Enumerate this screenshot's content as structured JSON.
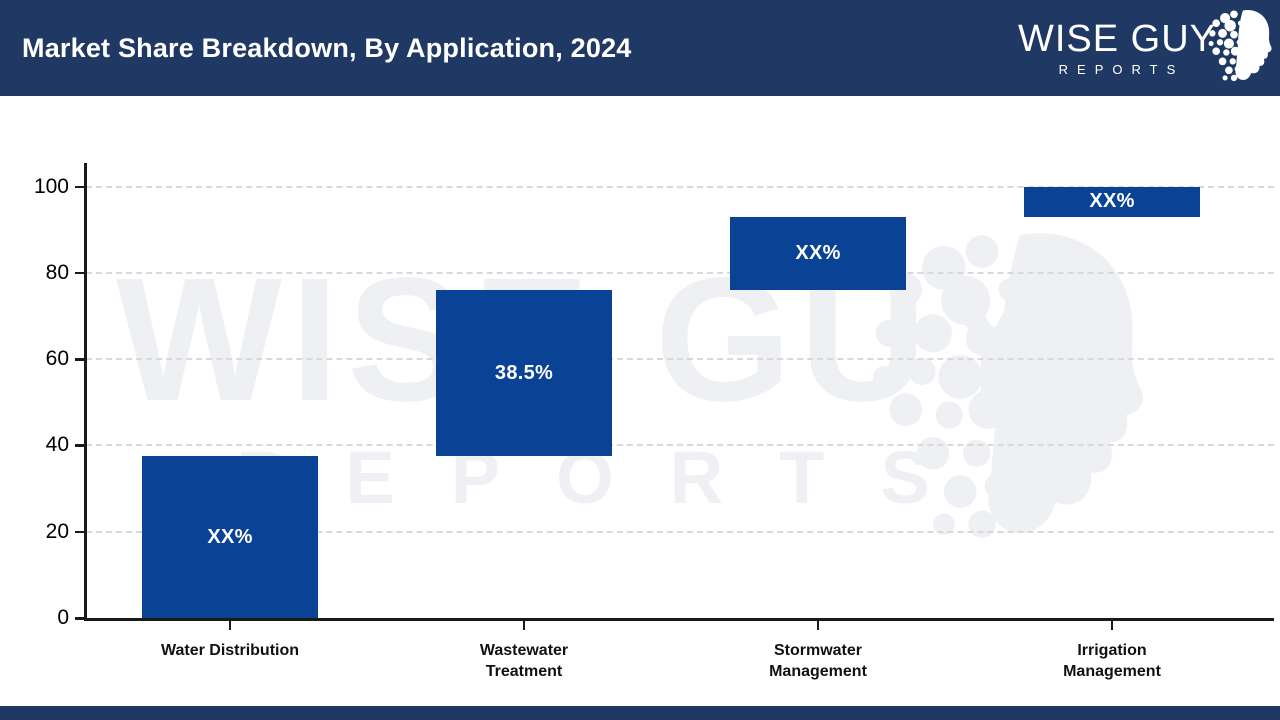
{
  "header": {
    "title": "Market Share Breakdown, By Application, 2024",
    "logo": {
      "line1": "WISE GUY",
      "line2": "REPORTS"
    }
  },
  "watermark": {
    "line1": "WISE GUY",
    "line2": "REPORTS"
  },
  "icons": {
    "logo_head": "head-profile-dots-icon"
  },
  "colors": {
    "header_bg": "#203864",
    "footer_bg": "#203864",
    "bar": "#0a4296",
    "gridline": "#d9d9d9",
    "axis": "#1a1a1a",
    "watermark": "#eef0f3",
    "bar_label_text": "#ffffff",
    "tick_text": "#000000"
  },
  "chart_data": {
    "type": "bar",
    "subtype": "waterfall",
    "title": "Market Share Breakdown, By Application, 2024",
    "xlabel": "",
    "ylabel": "",
    "categories": [
      "Water Distribution",
      "Wastewater Treatment",
      "Stormwater Management",
      "Irrigation Management"
    ],
    "category_lines": [
      [
        "Water Distribution"
      ],
      [
        "Wastewater",
        "Treatment"
      ],
      [
        "Stormwater",
        "Management"
      ],
      [
        "Irrigation",
        "Management"
      ]
    ],
    "segments": [
      {
        "category": "Water Distribution",
        "start": 0,
        "end": 37.5,
        "value": 37.5,
        "label": "XX%"
      },
      {
        "category": "Wastewater Treatment",
        "start": 37.5,
        "end": 76,
        "value": 38.5,
        "label": "38.5%"
      },
      {
        "category": "Stormwater Management",
        "start": 76,
        "end": 93,
        "value": 17,
        "label": "XX%"
      },
      {
        "category": "Irrigation Management",
        "start": 93,
        "end": 100,
        "value": 7,
        "label": "XX%"
      }
    ],
    "yticks": [
      0,
      20,
      40,
      60,
      80,
      100
    ],
    "ylim": [
      0,
      105
    ],
    "grid": "dashed-horizontal",
    "legend": "none"
  }
}
